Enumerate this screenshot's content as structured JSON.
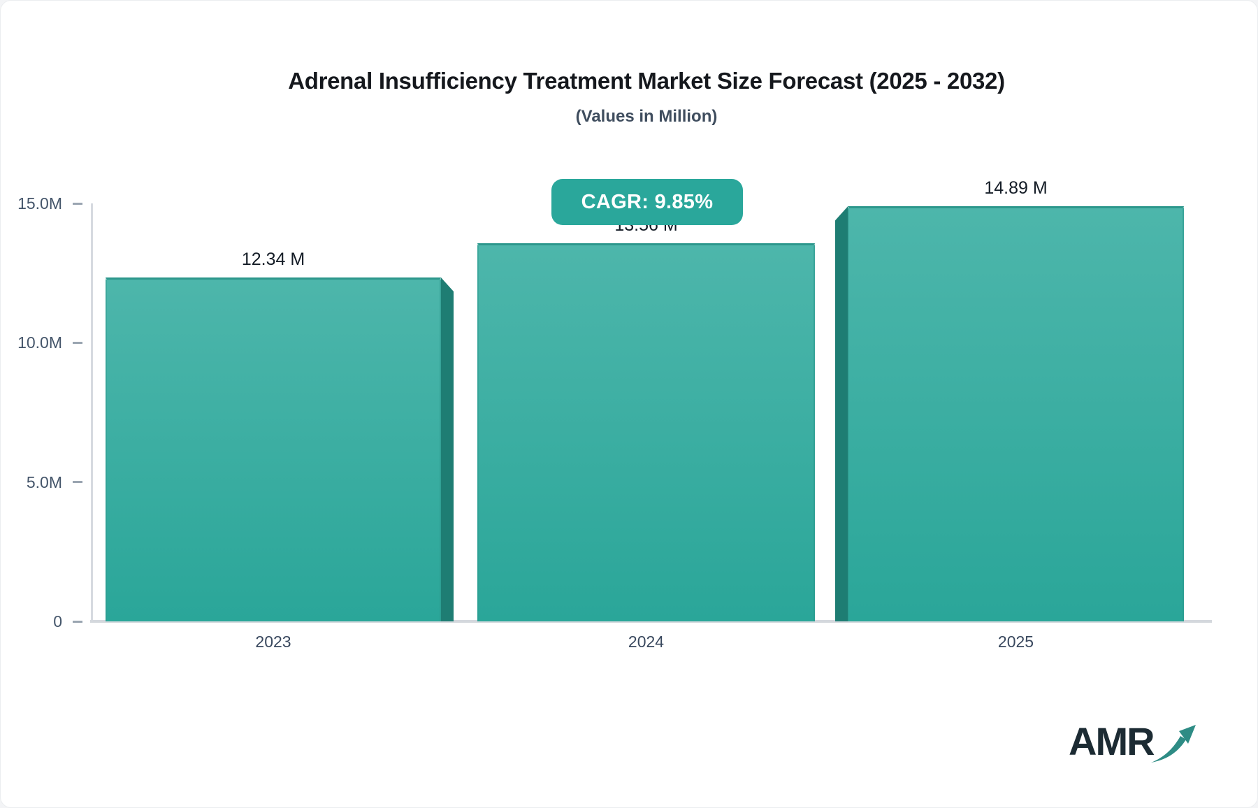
{
  "chart_data": {
    "type": "bar",
    "title": "Adrenal Insufficiency Treatment Market Size Forecast (2025 - 2032)",
    "subtitle": "(Values in Million)",
    "annotation": "CAGR: 9.85%",
    "categories": [
      "2023",
      "2024",
      "2025"
    ],
    "values": [
      12.34,
      13.56,
      14.89
    ],
    "value_labels": [
      "12.34 M",
      "13.56 M",
      "14.89 M"
    ],
    "ylabel": "",
    "xlabel": "",
    "ylim": [
      0,
      15
    ],
    "yticks": [
      {
        "value": 0,
        "label": "0"
      },
      {
        "value": 5,
        "label": "5.0M"
      },
      {
        "value": 10,
        "label": "10.0M"
      },
      {
        "value": 15,
        "label": "15.0M"
      }
    ],
    "grid": false,
    "legend": false,
    "unit": "Million"
  },
  "colors": {
    "accent": "#2aa79b",
    "bar_face_top": "#4db6ab",
    "bar_face_bottom": "#2aa699",
    "bar_side_3d": "#1e7d73",
    "bar_edge": "#2c978c",
    "axis_line": "#d6dae0",
    "tick_text": "#44556a",
    "badge_text": "#ffffff"
  },
  "logo": {
    "text": "AMR",
    "arrow_icon": "growth-arrow-icon",
    "arrow_color": "#2e8c85"
  }
}
